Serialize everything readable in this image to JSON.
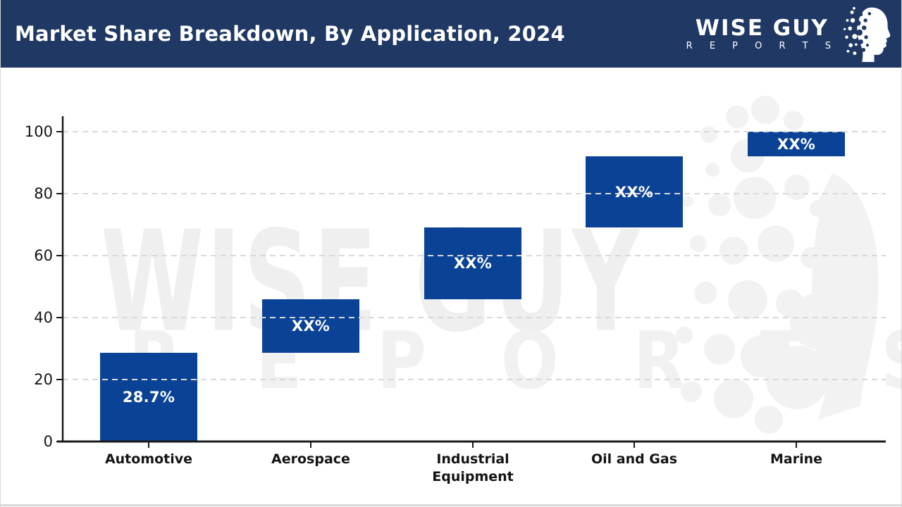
{
  "header": {
    "title": "Market Share Breakdown, By Application, 2024",
    "logo": {
      "line1": "WISE GUY",
      "line2": "R E P O R T S"
    }
  },
  "watermark": {
    "line1": "WISE GUY",
    "line2": "R E P O R T S"
  },
  "chart_data": {
    "type": "bar",
    "subtype": "waterfall",
    "title": "Market Share Breakdown, By Application, 2024",
    "categories": [
      "Automotive",
      "Aerospace",
      "Industrial\nEquipment",
      "Oil and Gas",
      "Marine"
    ],
    "segments": [
      {
        "category": "Automotive",
        "start": 0,
        "end": 28.7,
        "value": 28.7,
        "label": "28.7%"
      },
      {
        "category": "Aerospace",
        "start": 28.7,
        "end": 46,
        "value": 17.3,
        "label": "XX%"
      },
      {
        "category": "Industrial Equipment",
        "start": 46,
        "end": 69,
        "value": 23,
        "label": "XX%"
      },
      {
        "category": "Oil and Gas",
        "start": 69,
        "end": 92,
        "value": 23,
        "label": "XX%"
      },
      {
        "category": "Marine",
        "start": 92,
        "end": 100,
        "value": 8,
        "label": "XX%"
      }
    ],
    "masked_label": "XX%",
    "y_ticks": [
      0,
      20,
      40,
      60,
      80,
      100
    ],
    "ylim": [
      0,
      100
    ],
    "xlabel": "",
    "ylabel": "",
    "grid": true,
    "grid_style": "dashed",
    "legend": false,
    "style": {
      "bar_color": "#0A4296",
      "header_bg": "#1F3864",
      "gridline_color": "#D9D9D9",
      "axis_color": "#1A1A1A",
      "bar_label_color": "#FFFFFF",
      "watermark_color": "#EFEFEF"
    }
  }
}
